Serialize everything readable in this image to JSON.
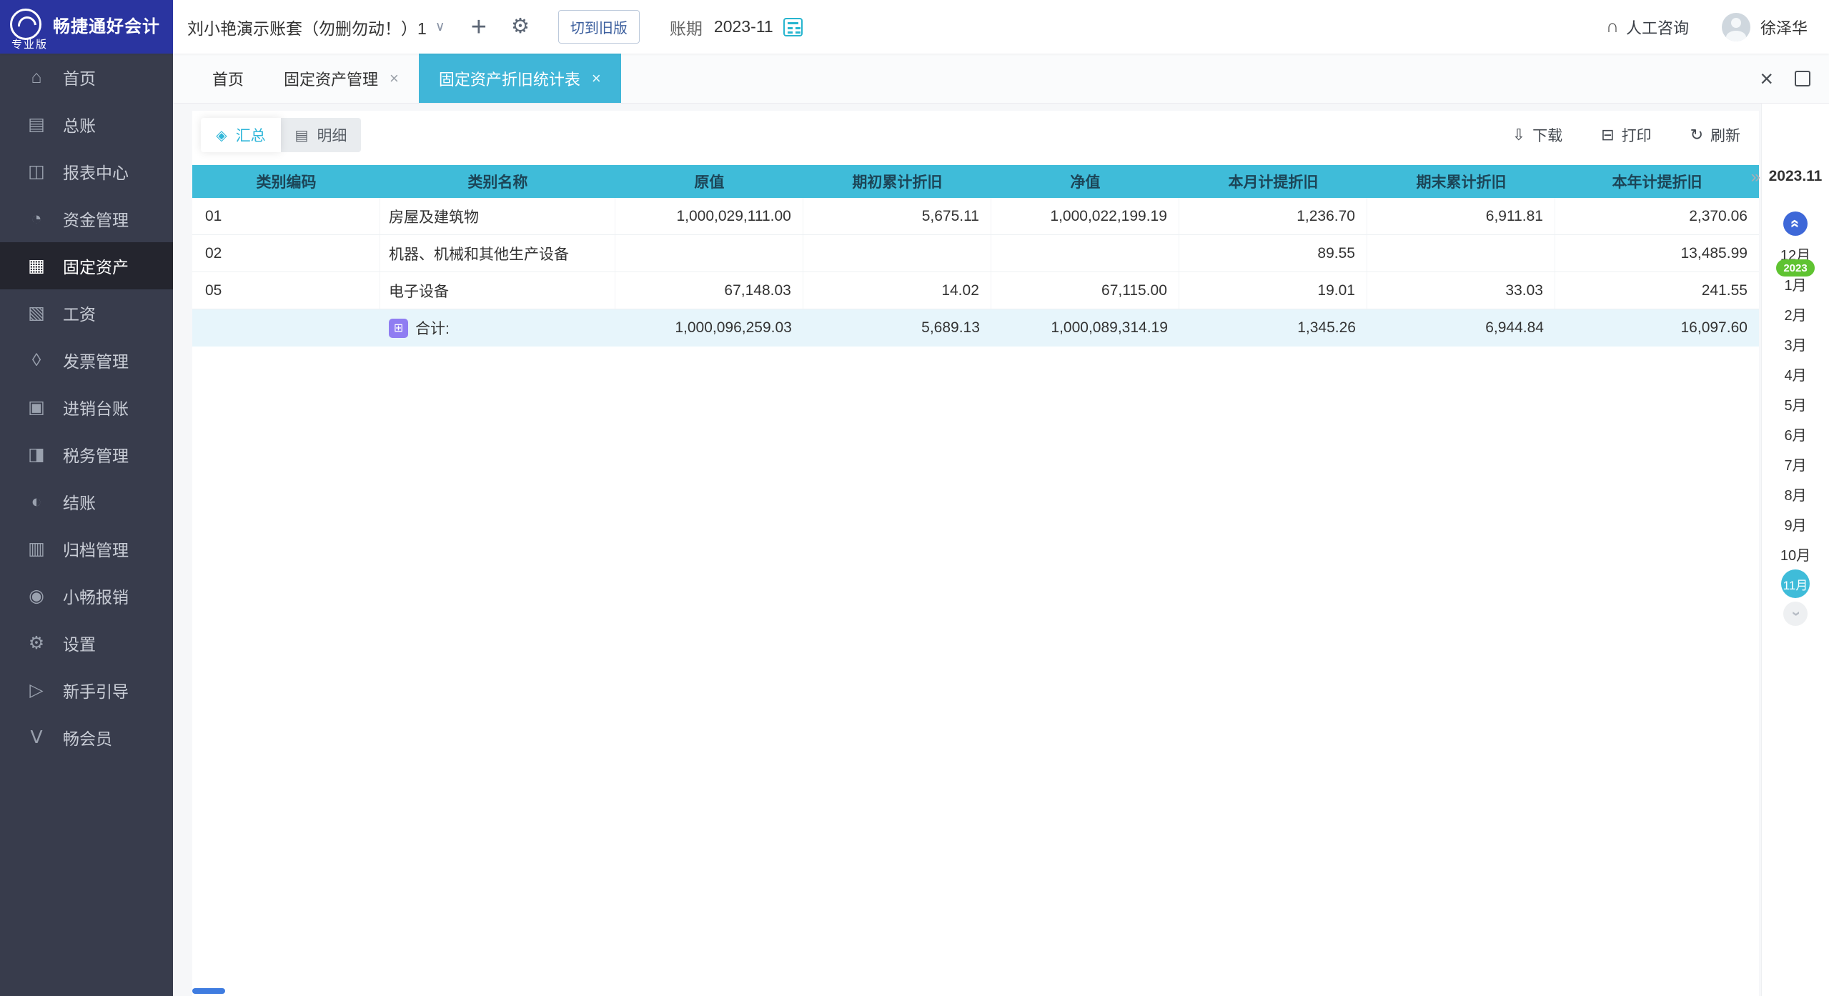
{
  "topbar": {
    "logo": {
      "title": "畅捷通好会计",
      "subtitle": "专业版"
    },
    "account_selector": {
      "value": "刘小艳演示账套（勿删勿动！）1",
      "chevron": "∨"
    },
    "plus_icon": "+",
    "gear_icon": "⚙",
    "switch_old_button": "切到旧版",
    "period": {
      "label": "账期",
      "value": "2023-11"
    },
    "support": {
      "icon": "∩",
      "label": "人工咨询"
    },
    "user": {
      "name": "徐泽华"
    }
  },
  "sidebar": {
    "items": [
      {
        "label": "首页",
        "icon": "⌂"
      },
      {
        "label": "总账",
        "icon": "▤"
      },
      {
        "label": "报表中心",
        "icon": "◫"
      },
      {
        "label": "资金管理",
        "icon": "◔"
      },
      {
        "label": "固定资产",
        "icon": "▦",
        "active": true
      },
      {
        "label": "工资",
        "icon": "▧"
      },
      {
        "label": "发票管理",
        "icon": "◊"
      },
      {
        "label": "进销台账",
        "icon": "▣"
      },
      {
        "label": "税务管理",
        "icon": "◨"
      },
      {
        "label": "结账",
        "icon": "◐"
      },
      {
        "label": "归档管理",
        "icon": "▥"
      },
      {
        "label": "小畅报销",
        "icon": "◉"
      },
      {
        "label": "设置",
        "icon": "⚙"
      },
      {
        "label": "新手引导",
        "icon": "▷"
      },
      {
        "label": "畅会员",
        "icon": "Ⅴ"
      }
    ]
  },
  "tabbar": {
    "tabs": [
      {
        "label": "首页",
        "closable": false
      },
      {
        "label": "固定资产管理",
        "closable": true
      },
      {
        "label": "固定资产折旧统计表",
        "closable": true,
        "active": true
      }
    ],
    "close_icon": "×",
    "close_all_icon": "×"
  },
  "toolbar": {
    "view_toggle": [
      {
        "label": "汇总",
        "icon": "◈",
        "active": true
      },
      {
        "label": "明细",
        "icon": "▤"
      }
    ],
    "actions": [
      {
        "label": "下载",
        "icon": "⇩"
      },
      {
        "label": "打印",
        "icon": "⊟"
      },
      {
        "label": "刷新",
        "icon": "↻"
      }
    ]
  },
  "table": {
    "columns": [
      "类别编码",
      "类别名称",
      "原值",
      "期初累计折旧",
      "净值",
      "本月计提折旧",
      "期末累计折旧",
      "本年计提折旧"
    ],
    "rows": [
      [
        "01",
        "房屋及建筑物",
        "1,000,029,111.00",
        "5,675.11",
        "1,000,022,199.19",
        "1,236.70",
        "6,911.81",
        "2,370.06"
      ],
      [
        "02",
        "机器、机械和其他生产设备",
        "",
        "",
        "",
        "89.55",
        "",
        "13,485.99"
      ],
      [
        "05",
        "电子设备",
        "67,148.03",
        "14.02",
        "67,115.00",
        "19.01",
        "33.03",
        "241.55"
      ]
    ],
    "total": {
      "icon": "⊞",
      "label": "合计:",
      "values": [
        "1,000,096,259.03",
        "5,689.13",
        "1,000,089,314.19",
        "1,345.26",
        "6,944.84",
        "16,097.60"
      ]
    }
  },
  "period_panel": {
    "collapse_icon": "»",
    "title": "2023.11",
    "year_badge": "2023",
    "up_icon": "«",
    "down_icon": "‹",
    "months": [
      "12月",
      "1月",
      "2月",
      "3月",
      "4月",
      "5月",
      "6月",
      "7月",
      "8月",
      "9月",
      "10月",
      "11月"
    ],
    "active_month": "11月"
  },
  "colors": {
    "accent_cyan": "#3fbcd9",
    "sidebar_bg": "#383c4c",
    "logo_bg": "#2a34a0",
    "total_row_bg": "#e7f5fb",
    "year_badge_green": "#5fc331",
    "jump_blue": "#3e68d8"
  }
}
